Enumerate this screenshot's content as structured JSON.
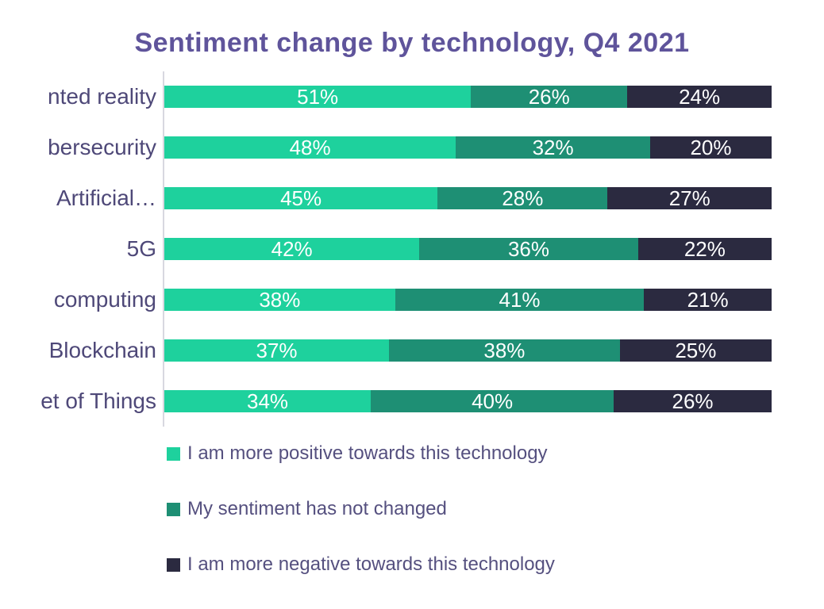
{
  "chart_data": {
    "type": "bar",
    "variant": "horizontal-stacked-100",
    "title": "Sentiment change by technology, Q4 2021",
    "categories": [
      "nted reality",
      "bersecurity",
      "Artificial…",
      "5G",
      "computing",
      "Blockchain",
      "et of Things"
    ],
    "series": [
      {
        "key": "positive",
        "name": "I am more positive towards this technology",
        "color": "#1ed19d",
        "values": [
          51,
          48,
          45,
          42,
          38,
          37,
          34
        ]
      },
      {
        "key": "unchanged",
        "name": "My sentiment has not changed",
        "color": "#1e8f74",
        "values": [
          26,
          32,
          28,
          36,
          41,
          38,
          40
        ]
      },
      {
        "key": "negative",
        "name": "I am more negative towards this technology",
        "color": "#2b2a40",
        "values": [
          24,
          20,
          27,
          22,
          21,
          25,
          26
        ]
      }
    ],
    "value_label_format": "percent",
    "legend_position": "bottom-left",
    "grid": false,
    "axis_line_color": "#d8d8e0",
    "title_color": "#5f549b",
    "category_label_color": "#4e4878",
    "legend_text_color": "#55507f",
    "value_label_color": "#ffffff"
  }
}
